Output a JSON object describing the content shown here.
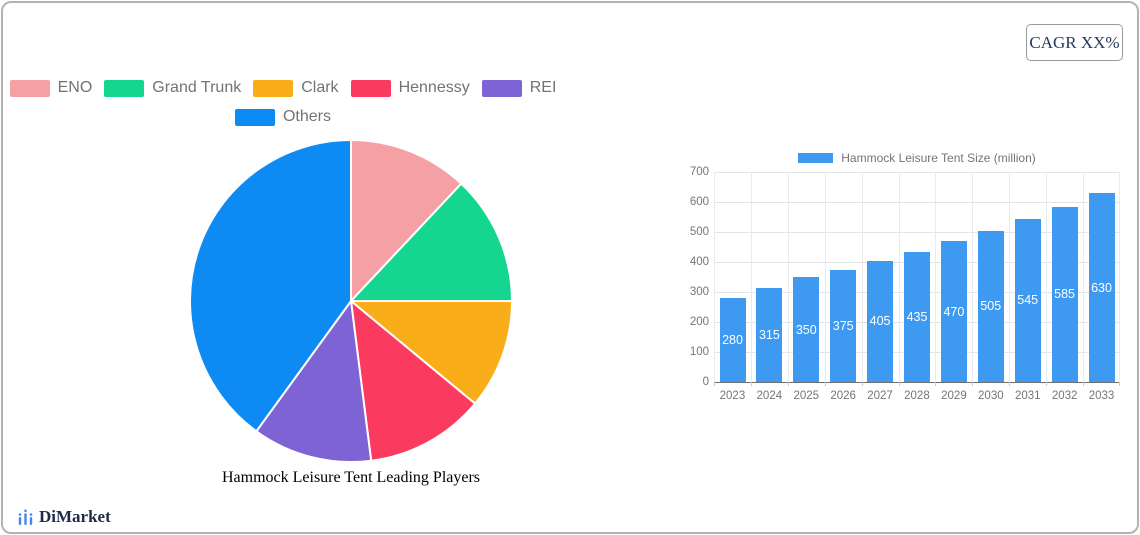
{
  "card": {
    "cagr_label": "CAGR XX%",
    "border_color": "#b3b3b3"
  },
  "brand": {
    "name": "DiMarket",
    "icon": "bar-chart-icon",
    "text_color": "#1c2b4a",
    "icon_color": "#4285f4"
  },
  "chart_data": [
    {
      "type": "pie",
      "title": "Hammock Leisure Tent Leading Players",
      "legend_position": "top-center",
      "direction": "clockwise",
      "start_angle_deg": 0,
      "slices": [
        {
          "label": "ENO",
          "value_pct": 12,
          "color": "#f4a0a5"
        },
        {
          "label": "Grand Trunk",
          "value_pct": 13,
          "color": "#15d68f"
        },
        {
          "label": "Clark",
          "value_pct": 11,
          "color": "#f9ad18"
        },
        {
          "label": "Hennessy",
          "value_pct": 12,
          "color": "#fa3a5e"
        },
        {
          "label": "REI",
          "value_pct": 12,
          "color": "#7e63d5"
        },
        {
          "label": "Others",
          "value_pct": 40,
          "color": "#0e8bf2"
        }
      ]
    },
    {
      "type": "bar",
      "legend": "Hammock Leisure Tent Size (million)",
      "categories": [
        "2023",
        "2024",
        "2025",
        "2026",
        "2027",
        "2028",
        "2029",
        "2030",
        "2031",
        "2032",
        "2033"
      ],
      "values": [
        280,
        315,
        350,
        375,
        405,
        435,
        470,
        505,
        545,
        585,
        630
      ],
      "bar_color": "#3e9af0",
      "value_label_color": "#ffffff",
      "ylim": [
        0,
        700
      ],
      "ytick_step": 100,
      "grid": true,
      "legend_position": "top",
      "axis_label_color": "#757575"
    }
  ]
}
